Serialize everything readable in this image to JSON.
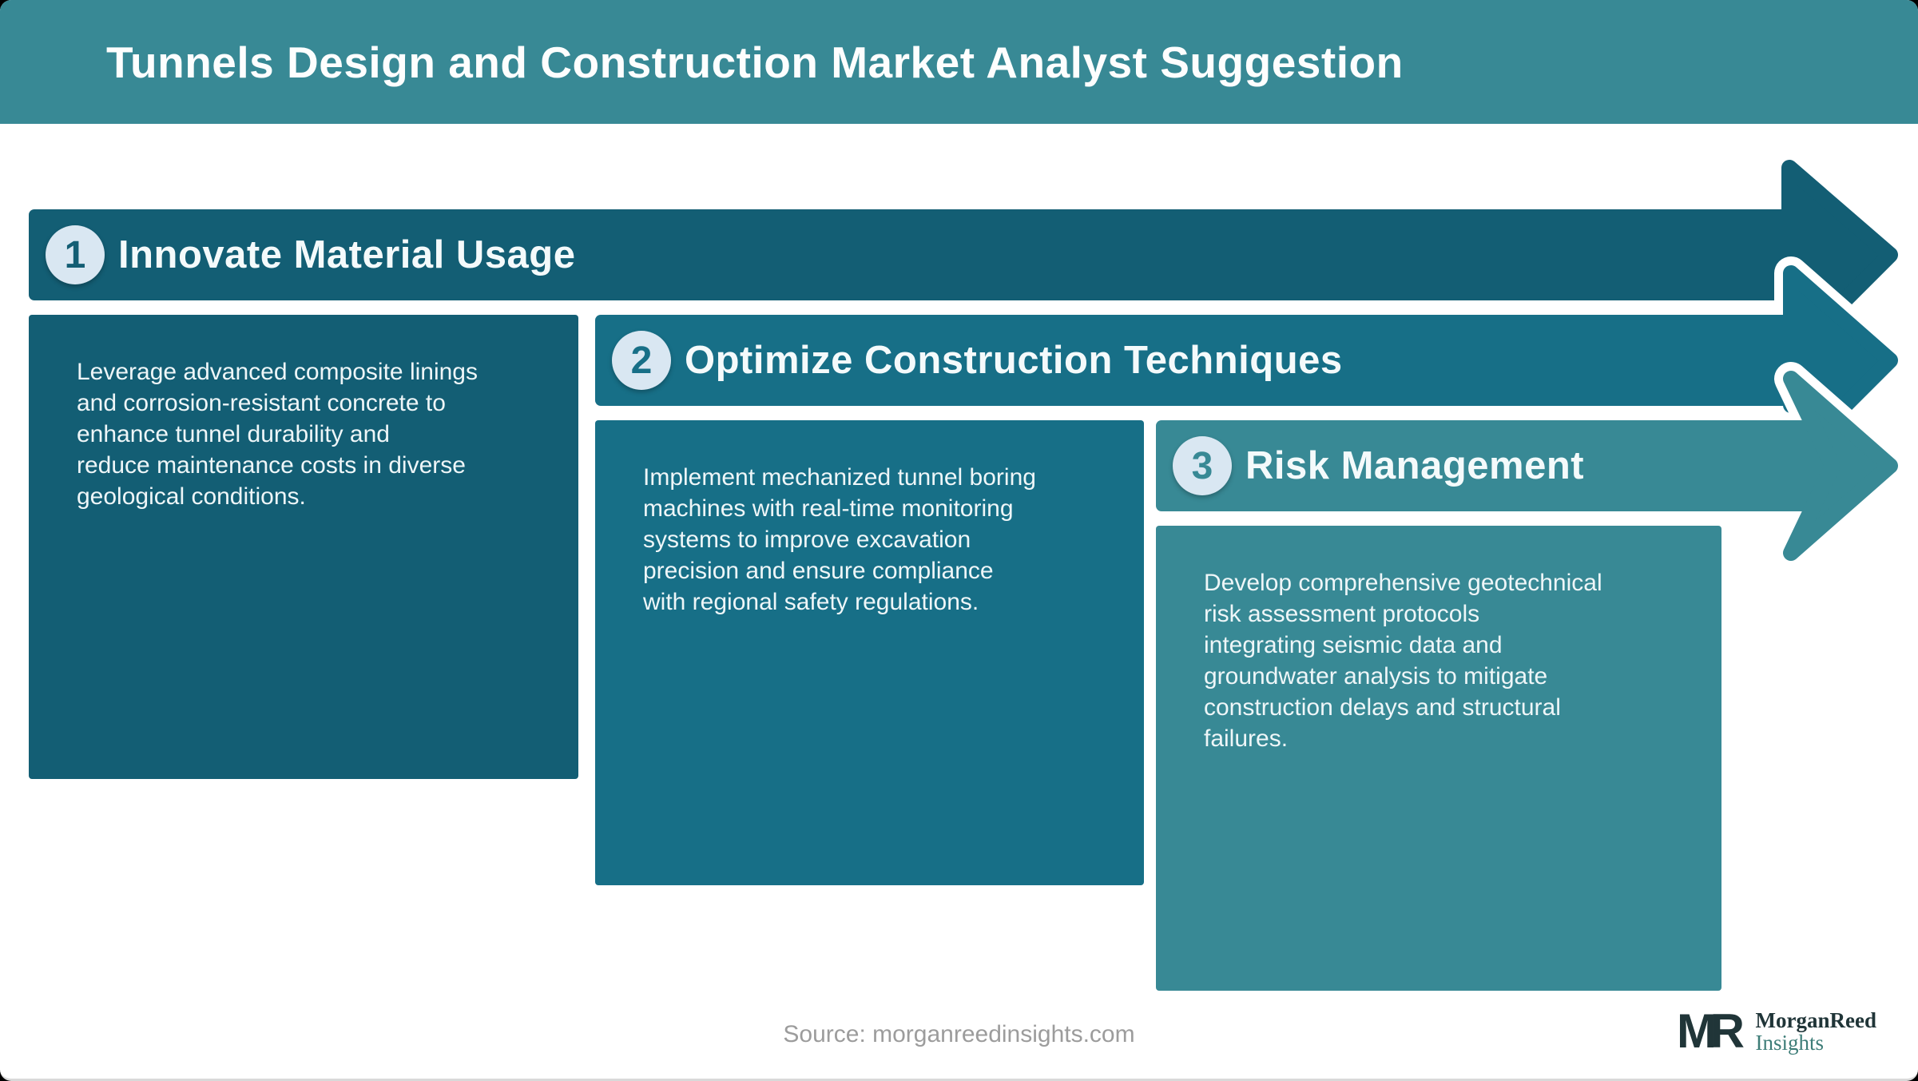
{
  "header": {
    "title": "Tunnels Design and Construction Market Analyst Suggestion",
    "bg": "#388995"
  },
  "steps": [
    {
      "number": "1",
      "title": "Innovate Material Usage",
      "color": "#135E74",
      "description_lines": [
        "Leverage advanced composite linings",
        "and corrosion-resistant concrete to",
        "enhance tunnel durability and",
        "reduce maintenance costs in diverse",
        "geological conditions."
      ]
    },
    {
      "number": "2",
      "title": "Optimize Construction Techniques",
      "color": "#176F87",
      "description_lines": [
        "Implement mechanized tunnel boring",
        "machines with real-time monitoring",
        "systems to improve excavation",
        "precision and ensure compliance",
        "with regional safety regulations."
      ]
    },
    {
      "number": "3",
      "title": "Risk Management",
      "color": "#388995",
      "description_lines": [
        "Develop comprehensive geotechnical",
        "risk assessment protocols",
        "integrating seismic data and",
        "groundwater analysis to mitigate",
        "construction delays and structural",
        "failures."
      ]
    }
  ],
  "footer": {
    "source": "Source: morganreedinsights.com",
    "logo_monogram": "MR",
    "logo_name": "MorganReed",
    "logo_tagline": "Insights"
  },
  "colors": {
    "badge_bg": "#D9E7F2",
    "source_text": "#9C9C9C",
    "logo_dark": "#203538",
    "logo_teal": "#3E7D78"
  }
}
